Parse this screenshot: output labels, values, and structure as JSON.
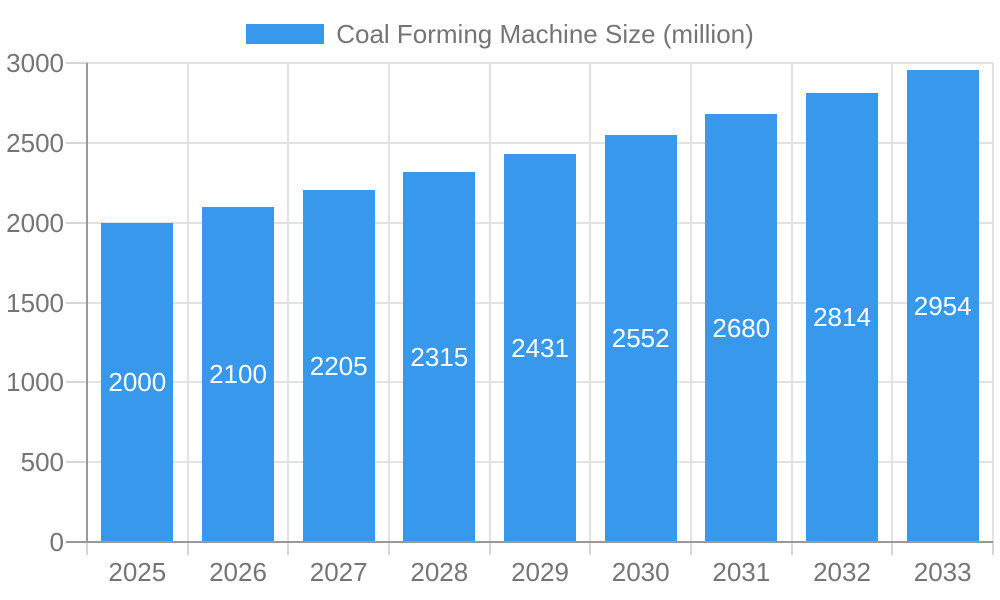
{
  "chart_data": {
    "type": "bar",
    "title": "Coal Forming Machine Size (million)",
    "legend_position": "top",
    "categories": [
      "2025",
      "2026",
      "2027",
      "2028",
      "2029",
      "2030",
      "2031",
      "2032",
      "2033"
    ],
    "series": [
      {
        "name": "Coal Forming Machine Size (million)",
        "values": [
          2000,
          2100,
          2205,
          2315,
          2431,
          2552,
          2680,
          2814,
          2954
        ]
      }
    ],
    "value_labels": [
      "2000",
      "2100",
      "2205",
      "2315",
      "2431",
      "2552",
      "2680",
      "2814",
      "2954"
    ],
    "xlabel": "",
    "ylabel": "",
    "ylim": [
      0,
      3000
    ],
    "yticks": [
      0,
      500,
      1000,
      1500,
      2000,
      2500,
      3000
    ],
    "grid": true,
    "colors": {
      "bar": "#3899EC",
      "value_label_text": "#FFFFFF",
      "axis_text": "#757575",
      "axis_line": "#999999",
      "gridline": "#E2E2E2",
      "tick": "#D6D6D6",
      "background": "#FFFFFF"
    }
  }
}
